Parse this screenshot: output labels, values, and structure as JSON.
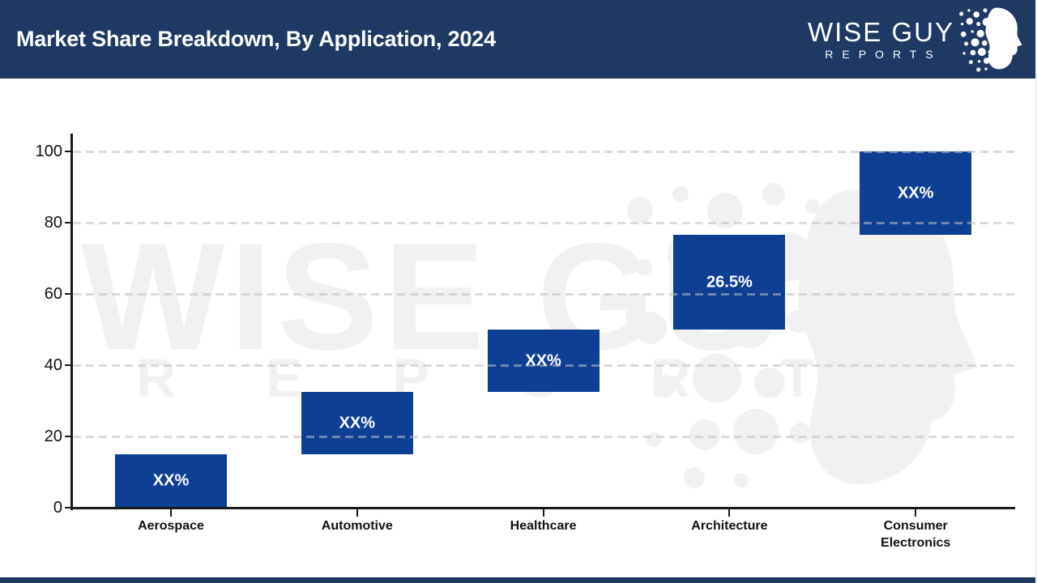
{
  "header": {
    "title": "Market Share Breakdown, By Application, 2024",
    "logo": {
      "line1": "WISE GUY",
      "line2": "REPORTS"
    }
  },
  "watermark": {
    "line1": "WISE GUY",
    "line2": "R E P O R T S"
  },
  "chart_data": {
    "type": "bar",
    "subtype": "waterfall",
    "title": "Market Share Breakdown, By Application, 2024",
    "categories": [
      "Aerospace",
      "Automotive",
      "Healthcare",
      "Architecture",
      "Consumer Electronics"
    ],
    "segments": [
      {
        "category": "Aerospace",
        "start": 0,
        "end": 15,
        "label": "XX%"
      },
      {
        "category": "Automotive",
        "start": 15,
        "end": 32.5,
        "label": "XX%"
      },
      {
        "category": "Healthcare",
        "start": 32.5,
        "end": 50,
        "label": "XX%"
      },
      {
        "category": "Architecture",
        "start": 50,
        "end": 76.5,
        "label": "26.5%"
      },
      {
        "category": "Consumer Electronics",
        "start": 76.5,
        "end": 100,
        "label": "XX%"
      }
    ],
    "ylim": [
      0,
      100
    ],
    "yticks": [
      0,
      20,
      40,
      60,
      80,
      100
    ],
    "grid": "horizontal-dashed",
    "legend": "none",
    "bar_color": "#0d4094",
    "bar_label_color": "#ffffff"
  },
  "colors": {
    "header_bg": "#1f3864",
    "footer_bg": "#1f3864",
    "bar": "#0d4094",
    "axis": "#1a1a1a",
    "grid": "#d9d9d9",
    "watermark": "#f1f1f3"
  }
}
